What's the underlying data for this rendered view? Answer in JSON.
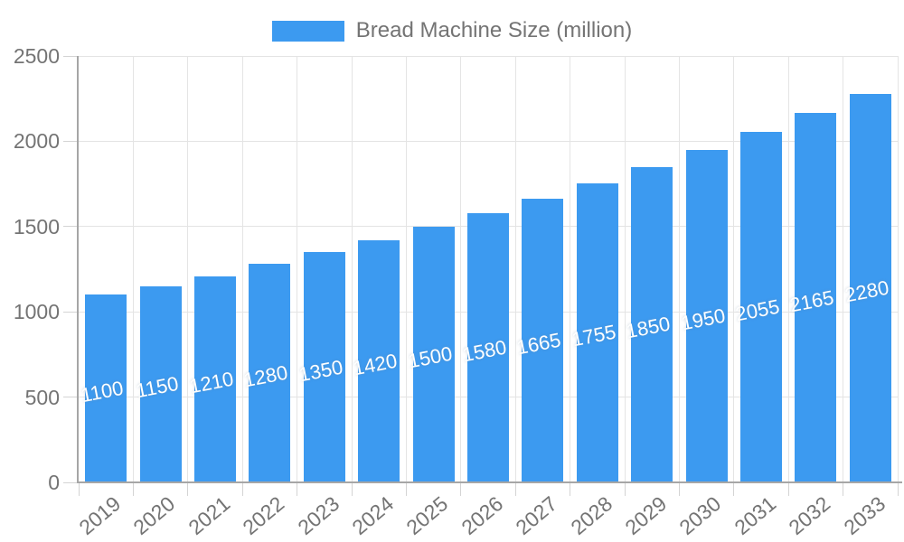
{
  "legend": {
    "label": "Bread Machine Size (million)"
  },
  "chart_data": {
    "type": "bar",
    "title": "Bread Machine Size (million)",
    "xlabel": "",
    "ylabel": "",
    "categories": [
      "2019",
      "2020",
      "2021",
      "2022",
      "2023",
      "2024",
      "2025",
      "2026",
      "2027",
      "2028",
      "2029",
      "2030",
      "2031",
      "2032",
      "2033"
    ],
    "values": [
      1100,
      1150,
      1210,
      1280,
      1350,
      1420,
      1500,
      1580,
      1665,
      1755,
      1850,
      1950,
      2055,
      2165,
      2280
    ],
    "series_name": "Bread Machine Size (million)",
    "bar_value_labels": [
      1100,
      1150,
      1210,
      1280,
      1350,
      1420,
      1500,
      1580,
      1665,
      1755,
      1850,
      1950,
      2055,
      2165,
      2280
    ],
    "ylim": [
      0,
      2500
    ],
    "yticks": [
      0,
      500,
      1000,
      1500,
      2000,
      2500
    ],
    "grid": true,
    "legend_position": "top-center",
    "x_tick_label_rotation_deg": -40,
    "bar_label_rotation_deg": -11
  },
  "colors": {
    "bar": "#3C9AF0",
    "grid": "#e4e4e4",
    "axis": "#a6a6a6",
    "tick": "#d4d4d4",
    "label_text": "#747474",
    "bar_label": "#ffffff",
    "background": "#ffffff"
  }
}
